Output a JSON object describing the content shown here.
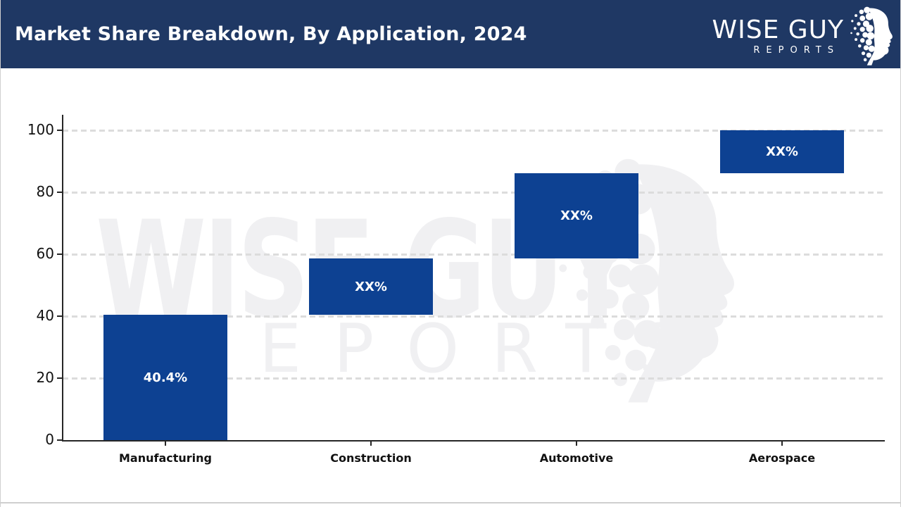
{
  "header": {
    "title": "Market Share Breakdown, By Application, 2024",
    "logo": {
      "line1": "WISE GUY",
      "line2": "REPORTS"
    }
  },
  "watermark": {
    "line1": "WISE GUY",
    "line2": "REPORTS"
  },
  "chart_data": {
    "type": "bar",
    "subtype": "waterfall",
    "title": "Market Share Breakdown, By Application, 2024",
    "categories": [
      "Manufacturing",
      "Construction",
      "Automotive",
      "Aerospace"
    ],
    "series": [
      {
        "name": "Market Share",
        "segments": [
          {
            "category": "Manufacturing",
            "start": 0,
            "end": 40.4,
            "label": "40.4%"
          },
          {
            "category": "Construction",
            "start": 40.4,
            "end": 58.6,
            "label": "XX%"
          },
          {
            "category": "Automotive",
            "start": 58.6,
            "end": 86.2,
            "label": "XX%"
          },
          {
            "category": "Aerospace",
            "start": 86.2,
            "end": 100,
            "label": "XX%"
          }
        ]
      }
    ],
    "xlabel": "",
    "ylabel": "",
    "ylim": [
      0,
      105
    ],
    "yticks": [
      0,
      20,
      40,
      60,
      80,
      100
    ],
    "grid": "horizontal-dashed",
    "legend": "none"
  },
  "colors": {
    "header_bg": "#1f3864",
    "bar": "#0d4192",
    "bar_label": "#ffffff",
    "watermark": "#f0f0f2",
    "grid": "#dcdcdc",
    "axis": "#262626",
    "border": "#cfcfcf"
  }
}
